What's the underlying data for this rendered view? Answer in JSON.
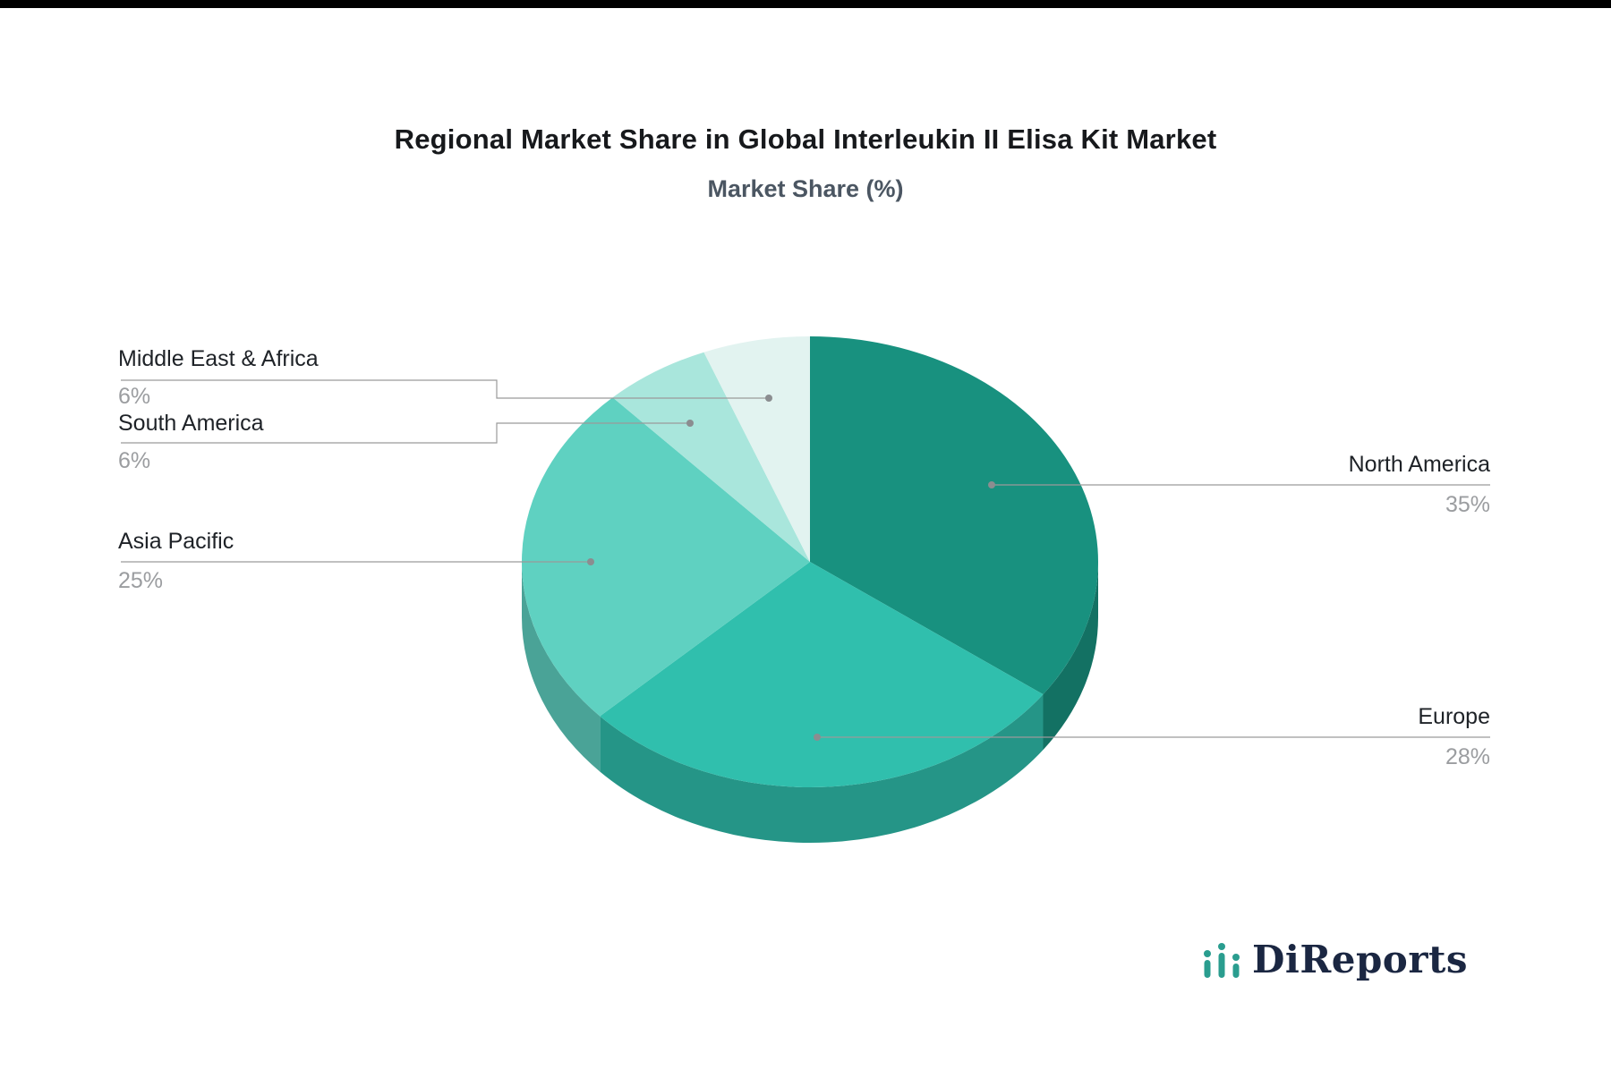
{
  "title": "Regional Market Share in Global Interleukin II Elisa Kit Market",
  "subtitle": "Market Share (%)",
  "logo": {
    "text": "DiReports",
    "icon": "bar-chart-icon",
    "icon_color": "#2a9d8f",
    "text_color": "#1b2742"
  },
  "chart_data": {
    "type": "pie",
    "style": "3d",
    "title": "Regional Market Share in Global Interleukin II Elisa Kit Market",
    "subtitle": "Market Share (%)",
    "unit": "percent",
    "start_angle_deg": 0,
    "direction": "clockwise",
    "legend_position": "none",
    "leader_line_color": "#9a9a9a",
    "label_color": "#1e2227",
    "value_color": "#9b9da0",
    "slices": [
      {
        "label": "North America",
        "value": 35,
        "value_label": "35%",
        "color": "#18917f"
      },
      {
        "label": "Europe",
        "value": 28,
        "value_label": "28%",
        "color": "#30bfad"
      },
      {
        "label": "Asia Pacific",
        "value": 25,
        "value_label": "25%",
        "color": "#5fd1c1"
      },
      {
        "label": "South America",
        "value": 6,
        "value_label": "6%",
        "color": "#a9e6dc"
      },
      {
        "label": "Middle East & Africa",
        "value": 6,
        "value_label": "6%",
        "color": "#e2f3f0"
      }
    ]
  }
}
